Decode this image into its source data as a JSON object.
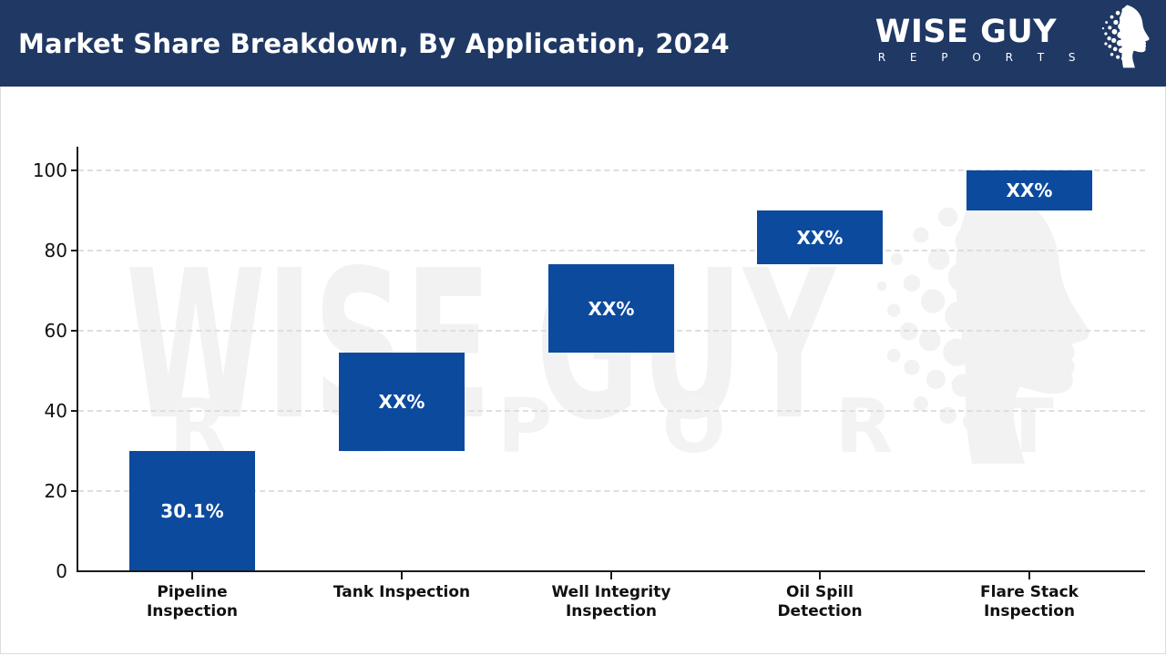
{
  "header": {
    "title": "Market Share Breakdown, By Application, 2024",
    "bg_color": "#1f3864",
    "logo": {
      "line1": "WISE GUY",
      "line2": "R E P O R T S",
      "icon": "dotted-head-profile"
    }
  },
  "watermark": {
    "line1": "WISE GUY",
    "line2": "R E P O R T S",
    "icon": "dotted-head-profile",
    "color": "#f2f2f2"
  },
  "chart_data": {
    "type": "bar",
    "subtype": "waterfall",
    "title": "Market Share Breakdown, By Application, 2024",
    "categories": [
      "Pipeline Inspection",
      "Tank Inspection",
      "Well Integrity Inspection",
      "Oil Spill Detection",
      "Flare Stack Inspection"
    ],
    "x_tick_labels": [
      [
        "Pipeline",
        "Inspection"
      ],
      [
        "Tank Inspection"
      ],
      [
        "Well Integrity",
        "Inspection"
      ],
      [
        "Oil Spill",
        "Detection"
      ],
      [
        "Flare Stack",
        "Inspection"
      ]
    ],
    "segments": [
      {
        "category": "Pipeline Inspection",
        "start": 0,
        "end": 30.1,
        "value_label": "30.1%"
      },
      {
        "category": "Tank Inspection",
        "start": 30.1,
        "end": 54.5,
        "value_label": "XX%"
      },
      {
        "category": "Well Integrity Inspection",
        "start": 54.5,
        "end": 76.5,
        "value_label": "XX%"
      },
      {
        "category": "Oil Spill Detection",
        "start": 76.5,
        "end": 90,
        "value_label": "XX%"
      },
      {
        "category": "Flare Stack Inspection",
        "start": 90,
        "end": 100,
        "value_label": "XX%"
      }
    ],
    "yticks": [
      0,
      20,
      40,
      60,
      80,
      100
    ],
    "ylim": [
      0,
      105
    ],
    "grid": "horizontal-dashed",
    "legend": "none",
    "bar_color": "#0c4a9e",
    "value_label_color": "#ffffff",
    "axis_color": "#1a1a1a"
  }
}
